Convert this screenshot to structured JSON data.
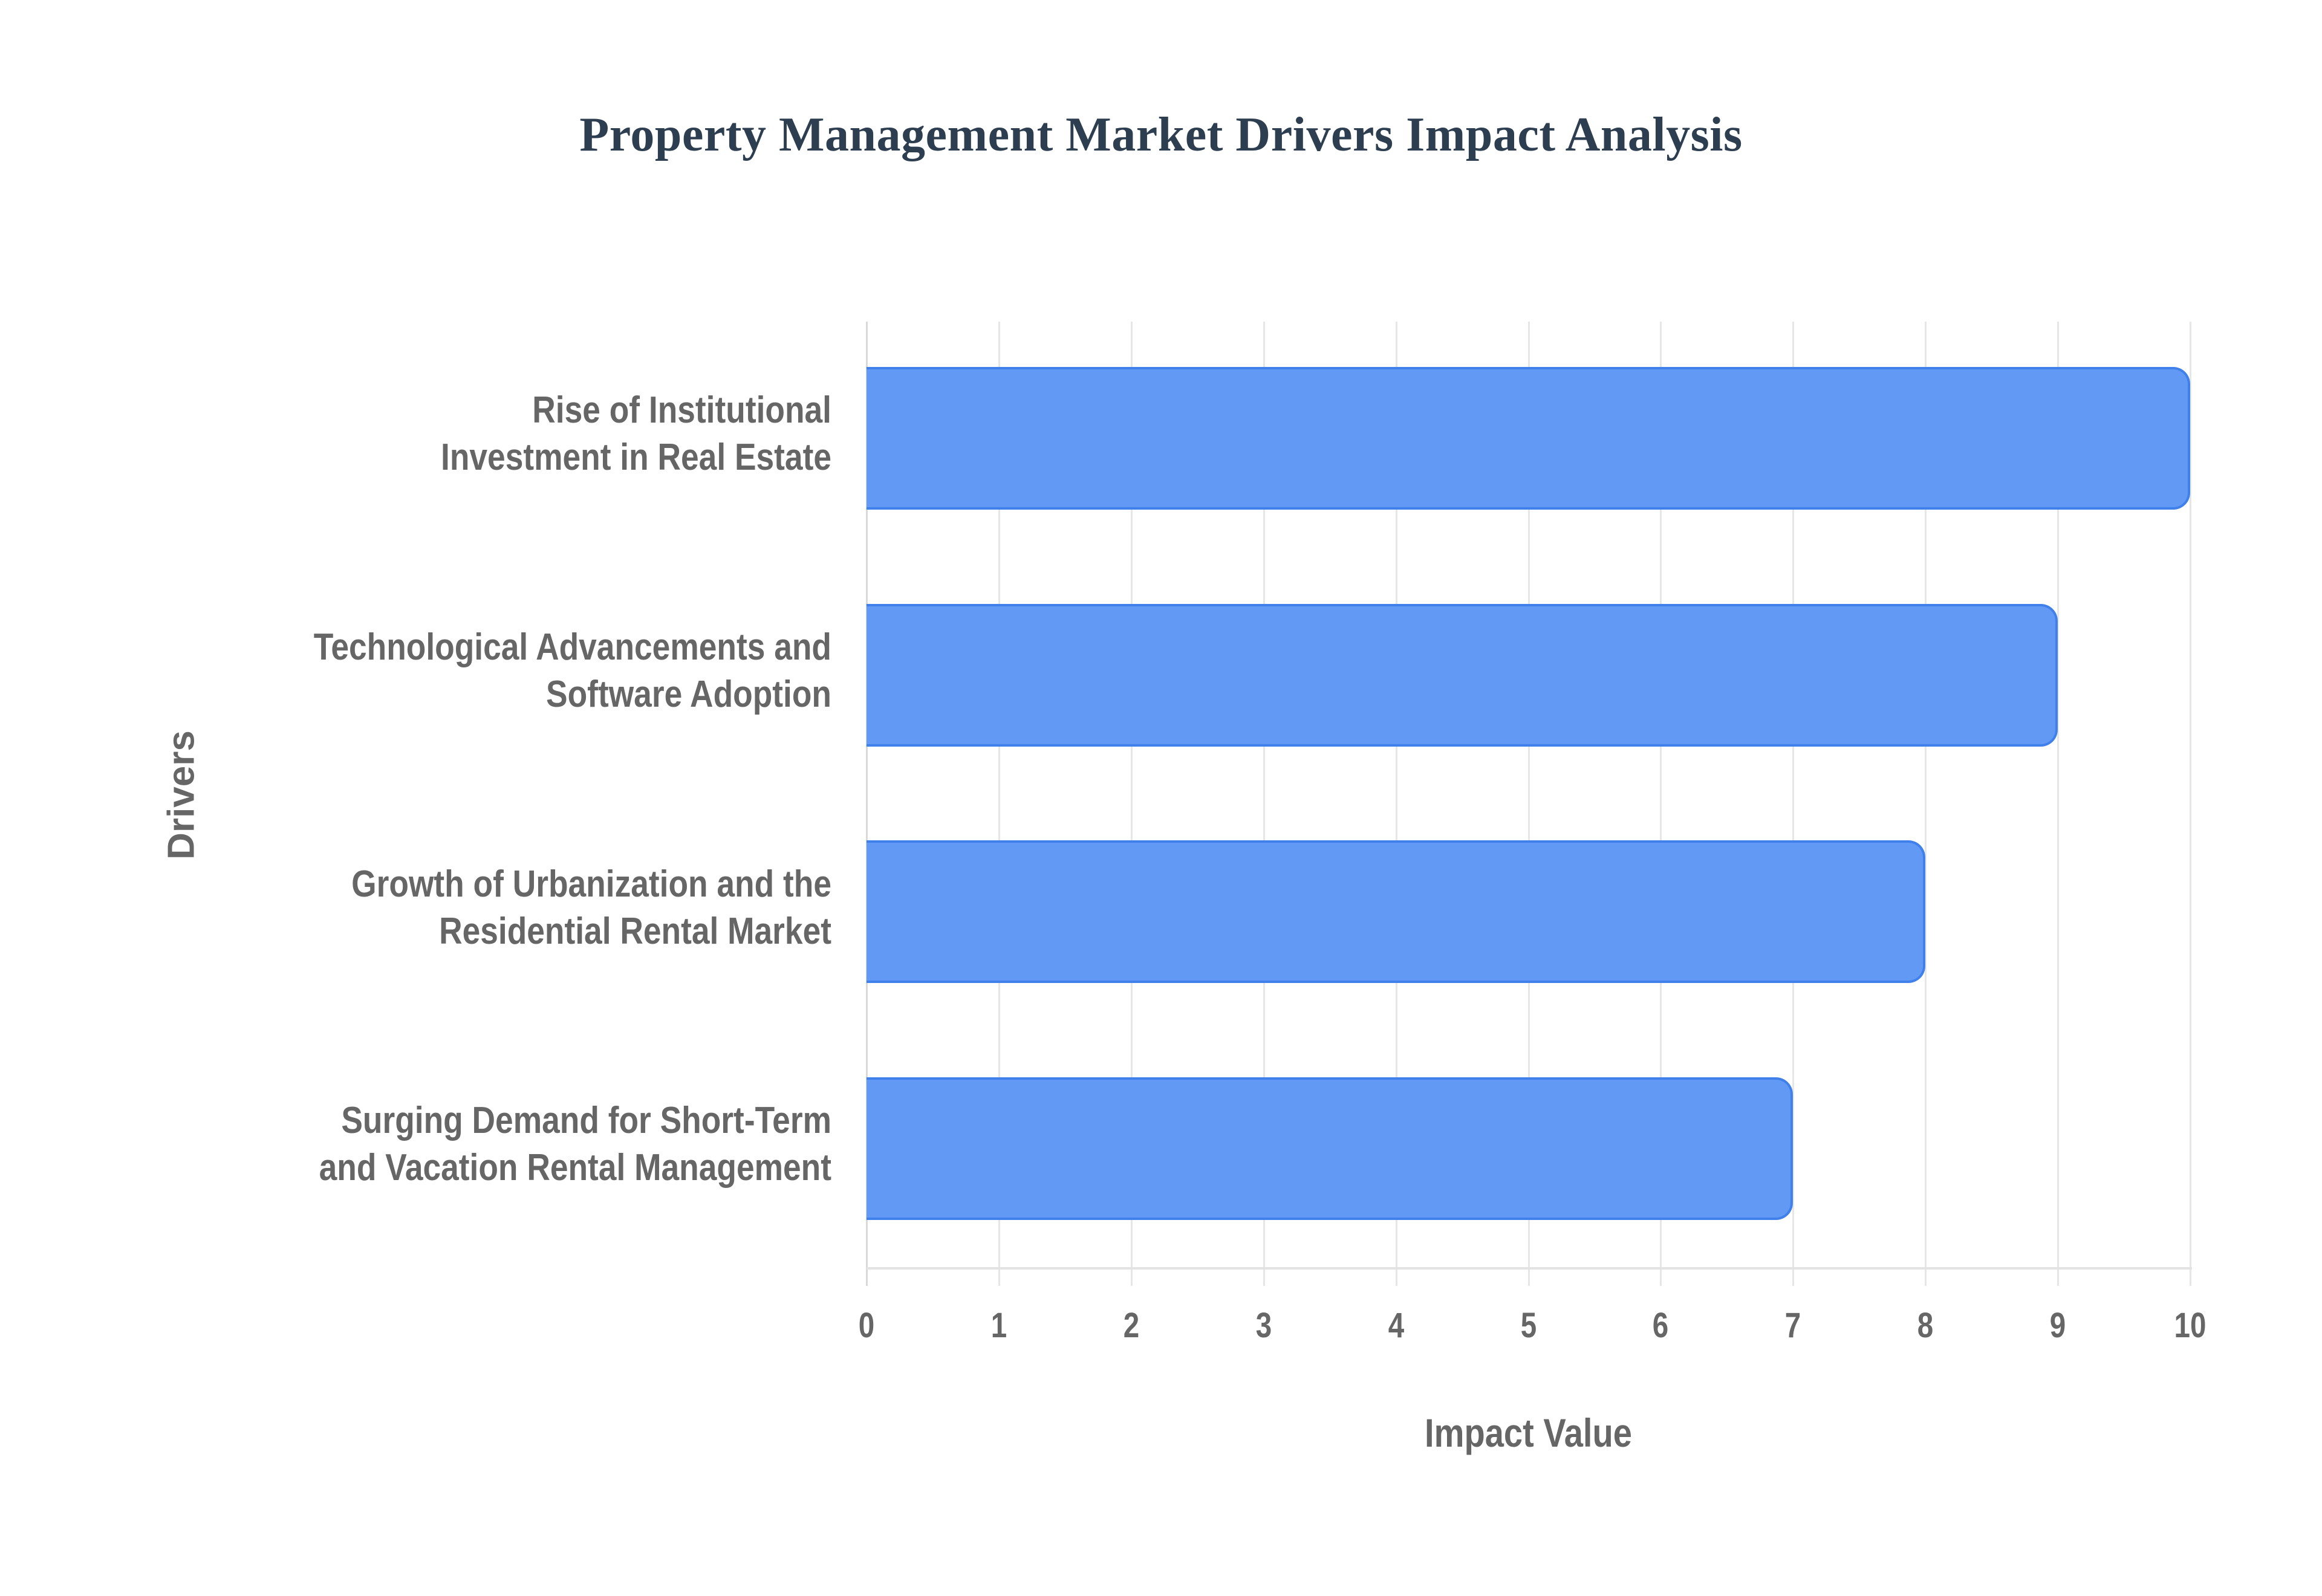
{
  "chart": {
    "title": "Property Management Market Drivers Impact Analysis",
    "x_axis_title": "Impact Value",
    "y_axis_title": "Drivers",
    "x_ticks": [
      "0",
      "1",
      "2",
      "3",
      "4",
      "5",
      "6",
      "7",
      "8",
      "9",
      "10"
    ],
    "bars": [
      {
        "line1": "Rise of Institutional",
        "line2": "Investment in Real Estate",
        "value": 10
      },
      {
        "line1": "Technological Advancements and",
        "line2": "Software Adoption",
        "value": 9
      },
      {
        "line1": "Growth of Urbanization and the",
        "line2": "Residential Rental Market",
        "value": 8
      },
      {
        "line1": "Surging Demand for Short-Term",
        "line2": "and Vacation Rental Management",
        "value": 7
      }
    ],
    "colors": {
      "bar_fill": "#6199f5",
      "bar_border": "#3f80ea",
      "title": "#2c3e50",
      "axis_text": "#666666",
      "grid": "#e6e6e6"
    }
  },
  "chart_data": {
    "type": "bar",
    "orientation": "horizontal",
    "title": "Property Management Market Drivers Impact Analysis",
    "xlabel": "Impact Value",
    "ylabel": "Drivers",
    "categories": [
      "Rise of Institutional Investment in Real Estate",
      "Technological Advancements and Software Adoption",
      "Growth of Urbanization and the Residential Rental Market",
      "Surging Demand for Short-Term and Vacation Rental Management"
    ],
    "values": [
      10,
      9,
      8,
      7
    ],
    "xlim": [
      0,
      10
    ],
    "x_ticks": [
      0,
      1,
      2,
      3,
      4,
      5,
      6,
      7,
      8,
      9,
      10
    ],
    "grid": true,
    "legend": null
  }
}
